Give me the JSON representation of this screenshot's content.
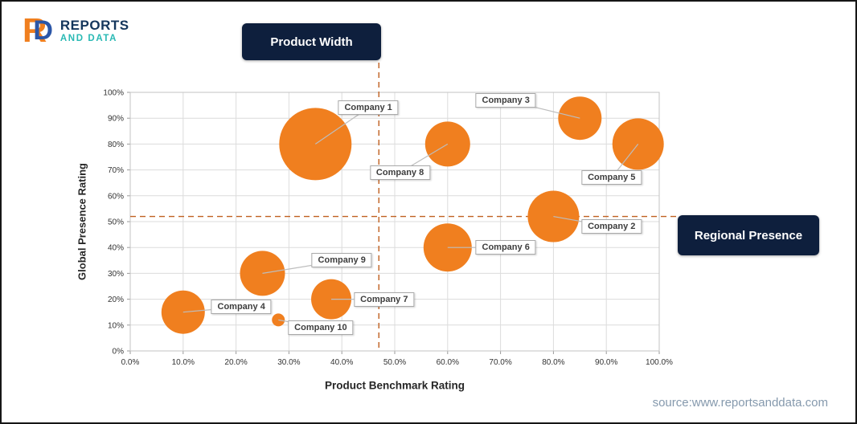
{
  "brand": {
    "mark_r": "R",
    "mark_d": "D",
    "name_line1": "REPORTS",
    "name_line2": "AND DATA"
  },
  "callouts": {
    "product_width": "Product Width",
    "regional_presence": "Regional Presence"
  },
  "source_text": "source:www.reportsanddata.com",
  "chart_data": {
    "type": "scatter",
    "subtype": "bubble",
    "title": "",
    "xlabel": "Product Benchmark Rating",
    "ylabel": "Global Presence Rating",
    "xlim": [
      0,
      100
    ],
    "ylim": [
      0,
      100
    ],
    "grid": true,
    "legend": "none",
    "x_tick_labels": [
      "0.0%",
      "10.0%",
      "20.0%",
      "30.0%",
      "40.0%",
      "50.0%",
      "60.0%",
      "70.0%",
      "80.0%",
      "90.0%",
      "100.0%"
    ],
    "y_tick_labels": [
      "0%",
      "10%",
      "20%",
      "30%",
      "40%",
      "50%",
      "60%",
      "70%",
      "80%",
      "90%",
      "100%"
    ],
    "bubble_color": "#f07f1f",
    "gridline_color": "#dcdcdc",
    "crosshair": {
      "x": 47,
      "y": 52,
      "color": "#c06020"
    },
    "points": [
      {
        "name": "Company 1",
        "x": 35,
        "y": 80,
        "r": 45,
        "label_x": 45,
        "label_y": 94
      },
      {
        "name": "Company 8",
        "x": 60,
        "y": 80,
        "r": 28,
        "label_x": 51,
        "label_y": 69
      },
      {
        "name": "Company 3",
        "x": 85,
        "y": 90,
        "r": 27,
        "label_x": 71,
        "label_y": 97
      },
      {
        "name": "Company 5",
        "x": 96,
        "y": 80,
        "r": 32,
        "label_x": 91,
        "label_y": 67
      },
      {
        "name": "Company 2",
        "x": 80,
        "y": 52,
        "r": 32,
        "label_x": 91,
        "label_y": 48
      },
      {
        "name": "Company 6",
        "x": 60,
        "y": 40,
        "r": 30,
        "label_x": 71,
        "label_y": 40
      },
      {
        "name": "Company 9",
        "x": 25,
        "y": 30,
        "r": 28,
        "label_x": 40,
        "label_y": 35
      },
      {
        "name": "Company 7",
        "x": 38,
        "y": 20,
        "r": 25,
        "label_x": 48,
        "label_y": 20
      },
      {
        "name": "Company 4",
        "x": 10,
        "y": 15,
        "r": 27,
        "label_x": 21,
        "label_y": 17
      },
      {
        "name": "Company 10",
        "x": 28,
        "y": 12,
        "r": 8,
        "label_x": 36,
        "label_y": 9
      }
    ]
  }
}
